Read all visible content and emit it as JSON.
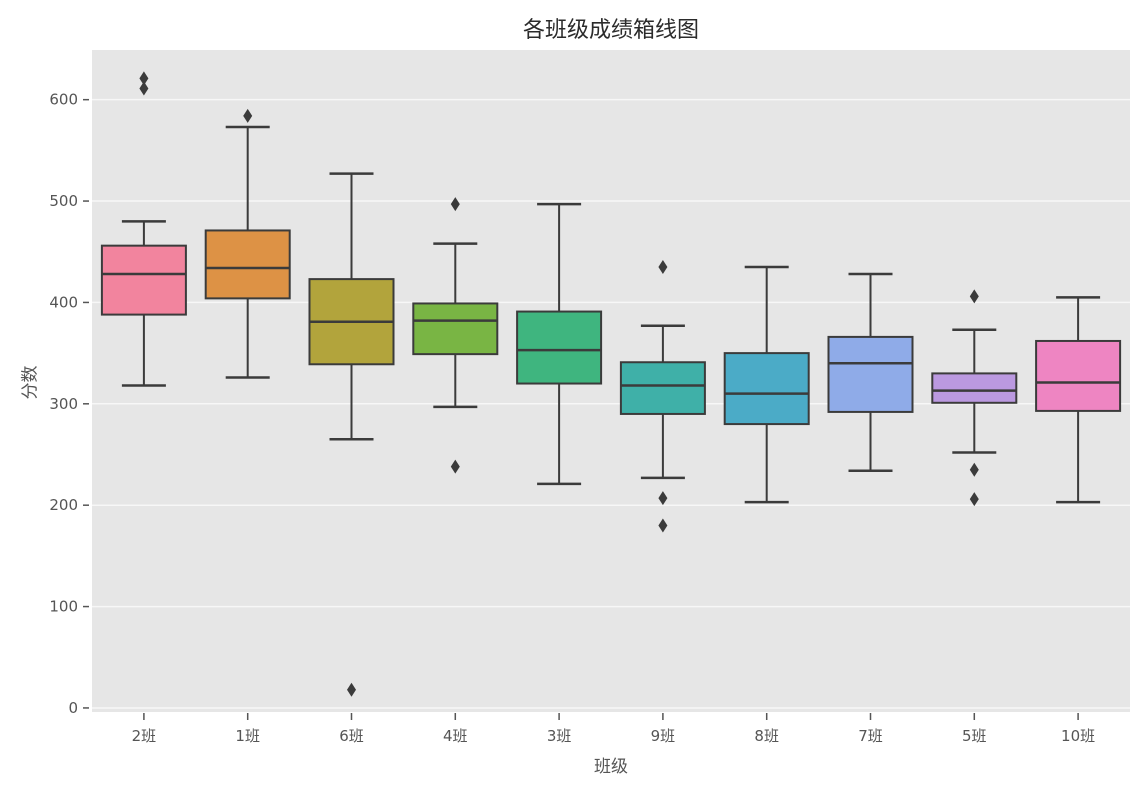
{
  "chart_data": {
    "type": "boxplot",
    "title": "各班级成绩箱线图",
    "xlabel": "班级",
    "ylabel": "分数",
    "yticks": [
      0,
      100,
      200,
      300,
      400,
      500,
      600
    ],
    "ylim": [
      -4,
      649
    ],
    "grid": "horizontal-white-on-gray",
    "legend": "none",
    "categories": [
      "2班",
      "1班",
      "6班",
      "4班",
      "3班",
      "9班",
      "8班",
      "7班",
      "5班",
      "10班"
    ],
    "series": [
      {
        "label": "2班",
        "color": "#f2849e",
        "whisker_low": 318,
        "q1": 388,
        "median": 428,
        "q3": 456,
        "whisker_high": 480,
        "outliers": [
          611,
          621
        ]
      },
      {
        "label": "1班",
        "color": "#dd9245",
        "whisker_low": 326,
        "q1": 404,
        "median": 434,
        "q3": 471,
        "whisker_high": 573,
        "outliers": [
          584
        ]
      },
      {
        "label": "6班",
        "color": "#b2a43c",
        "whisker_low": 265,
        "q1": 339,
        "median": 381,
        "q3": 423,
        "whisker_high": 527,
        "outliers": [
          18
        ]
      },
      {
        "label": "4班",
        "color": "#79b544",
        "whisker_low": 297,
        "q1": 349,
        "median": 382,
        "q3": 399,
        "whisker_high": 458,
        "outliers": [
          497,
          238
        ]
      },
      {
        "label": "3班",
        "color": "#3fb57f",
        "whisker_low": 221,
        "q1": 320,
        "median": 353,
        "q3": 391,
        "whisker_high": 497,
        "outliers": []
      },
      {
        "label": "9班",
        "color": "#3fb0a8",
        "whisker_low": 227,
        "q1": 290,
        "median": 318,
        "q3": 341,
        "whisker_high": 377,
        "outliers": [
          435,
          207,
          180
        ]
      },
      {
        "label": "8班",
        "color": "#4babc7",
        "whisker_low": 203,
        "q1": 280,
        "median": 310,
        "q3": 350,
        "whisker_high": 435,
        "outliers": []
      },
      {
        "label": "7班",
        "color": "#8fabe8",
        "whisker_low": 234,
        "q1": 292,
        "median": 340,
        "q3": 366,
        "whisker_high": 428,
        "outliers": []
      },
      {
        "label": "5班",
        "color": "#bb99e0",
        "whisker_low": 252,
        "q1": 301,
        "median": 313,
        "q3": 330,
        "whisker_high": 373,
        "outliers": [
          406,
          235,
          206
        ]
      },
      {
        "label": "10班",
        "color": "#ee85c2",
        "whisker_low": 203,
        "q1": 293,
        "median": 321,
        "q3": 362,
        "whisker_high": 405,
        "outliers": []
      }
    ],
    "styles": {
      "figure_bg": "#ffffff",
      "plot_bg": "#e6e6e6",
      "grid_line": "#f7f7f7",
      "edge": "#3b3b3b",
      "tick": "#555555",
      "tick_label": "#555555",
      "title_color": "#2b2b2b"
    }
  }
}
